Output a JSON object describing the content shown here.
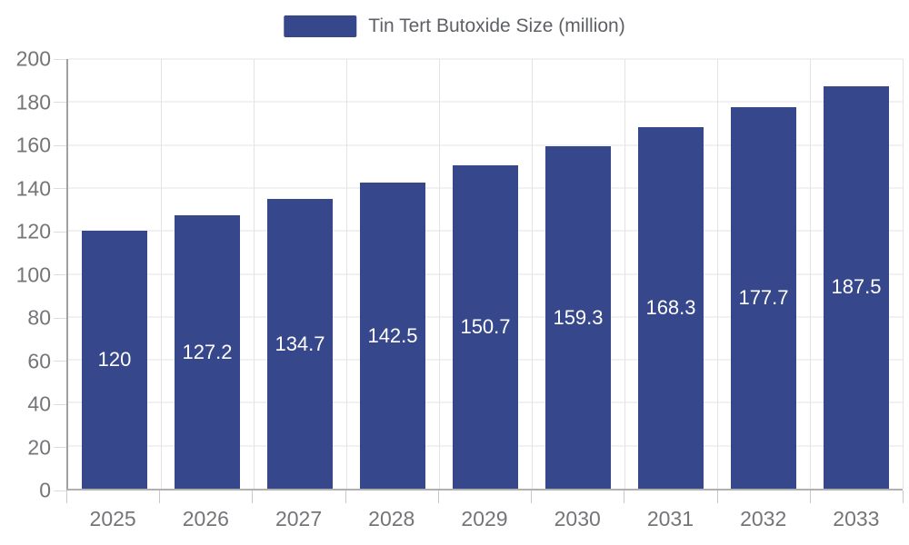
{
  "chart_data": {
    "type": "bar",
    "title": "Tin Tert Butoxide Size (million)",
    "legend": {
      "label": "Tin Tert Butoxide Size (million)",
      "position": "top-center"
    },
    "categories": [
      "2025",
      "2026",
      "2027",
      "2028",
      "2029",
      "2030",
      "2031",
      "2032",
      "2033"
    ],
    "series": [
      {
        "name": "Tin Tert Butoxide Size (million)",
        "values": [
          120,
          127.2,
          134.7,
          142.5,
          150.7,
          159.3,
          168.3,
          177.7,
          187.5
        ]
      }
    ],
    "value_labels": [
      "120",
      "127.2",
      "134.7",
      "142.5",
      "150.7",
      "159.3",
      "168.3",
      "177.7",
      "187.5"
    ],
    "value_label_position": "inside-center",
    "xlabel": "",
    "ylabel": "",
    "ylim": [
      0,
      200
    ],
    "yticks": [
      0,
      20,
      40,
      60,
      80,
      100,
      120,
      140,
      160,
      180,
      200
    ],
    "grid": true,
    "colors": {
      "bar": "#36478b",
      "gridline": "#e3e3e3",
      "y_axis_line": "#a0a0a0",
      "x_axis_line": "#b0b0b0",
      "axis_tick": "#c9c9c9",
      "axis_label_text": "#757579",
      "legend_text": "#5e6066",
      "value_label_text": "#ffffff",
      "background": "#ffffff"
    }
  }
}
